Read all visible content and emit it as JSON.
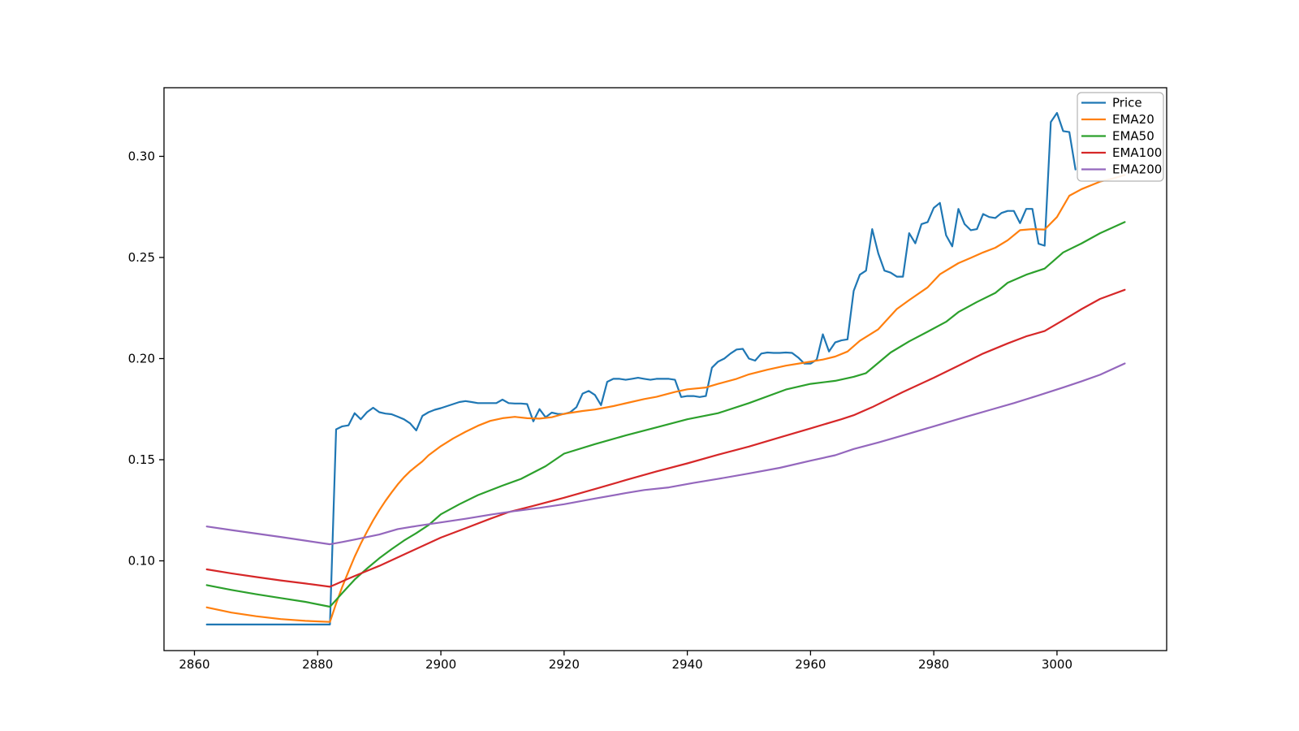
{
  "page": {
    "background": "#ffffff"
  },
  "chart_data": {
    "type": "line",
    "title": "",
    "xlabel": "",
    "ylabel": "",
    "grid": false,
    "legend_position": "upper right",
    "axis_color": "#000000",
    "xlim": [
      2855.06,
      3017.8
    ],
    "ylim": [
      0.05562,
      0.33393
    ],
    "x_ticks": [
      2860,
      2880,
      2900,
      2920,
      2940,
      2960,
      2980,
      3000
    ],
    "y_ticks": [
      {
        "value": 0.1,
        "label": "0.10"
      },
      {
        "value": 0.15,
        "label": "0.15"
      },
      {
        "value": 0.2,
        "label": "0.20"
      },
      {
        "value": 0.25,
        "label": "0.25"
      },
      {
        "value": 0.3,
        "label": "0.30"
      }
    ],
    "legend_entries": [
      {
        "label": "Price",
        "color": "#1f77b4"
      },
      {
        "label": "EMA20",
        "color": "#ff7f0e"
      },
      {
        "label": "EMA50",
        "color": "#2ca02c"
      },
      {
        "label": "EMA100",
        "color": "#d62728"
      },
      {
        "label": "EMA200",
        "color": "#9467bd"
      }
    ],
    "series": [
      {
        "name": "Price",
        "color": "#1f77b4",
        "kind": "per_unit",
        "x_start": 2862,
        "values": [
          0.0685,
          0.0685,
          0.0685,
          0.0685,
          0.0685,
          0.0685,
          0.0685,
          0.0685,
          0.0685,
          0.0685,
          0.0685,
          0.0685,
          0.0685,
          0.0685,
          0.0685,
          0.0685,
          0.0685,
          0.0685,
          0.0685,
          0.0685,
          0.0685,
          0.165,
          0.1665,
          0.167,
          0.173,
          0.17,
          0.1735,
          0.1757,
          0.1735,
          0.1728,
          0.1725,
          0.1713,
          0.17,
          0.168,
          0.1645,
          0.1717,
          0.1735,
          0.1747,
          0.1755,
          0.1765,
          0.1775,
          0.1785,
          0.179,
          0.1785,
          0.178,
          0.178,
          0.178,
          0.178,
          0.1797,
          0.178,
          0.1778,
          0.1778,
          0.1775,
          0.169,
          0.175,
          0.171,
          0.1733,
          0.1726,
          0.1726,
          0.1735,
          0.176,
          0.1827,
          0.184,
          0.182,
          0.177,
          0.1885,
          0.19,
          0.19,
          0.1895,
          0.19,
          0.1905,
          0.19,
          0.1895,
          0.19,
          0.19,
          0.19,
          0.1895,
          0.181,
          0.1815,
          0.1815,
          0.181,
          0.1815,
          0.1955,
          0.1985,
          0.2,
          0.2025,
          0.2045,
          0.2048,
          0.2,
          0.199,
          0.2025,
          0.203,
          0.2028,
          0.2028,
          0.203,
          0.2028,
          0.2005,
          0.1975,
          0.1975,
          0.1995,
          0.212,
          0.2035,
          0.208,
          0.209,
          0.2095,
          0.2335,
          0.2415,
          0.2435,
          0.264,
          0.252,
          0.2435,
          0.2425,
          0.2405,
          0.2405,
          0.262,
          0.257,
          0.2665,
          0.2675,
          0.2745,
          0.277,
          0.261,
          0.2555,
          0.274,
          0.2665,
          0.2635,
          0.264,
          0.2715,
          0.27,
          0.2695,
          0.272,
          0.273,
          0.273,
          0.267,
          0.274,
          0.274,
          0.2568,
          0.2558,
          0.317,
          0.3215,
          0.3125,
          0.312,
          0.2935
        ]
      },
      {
        "name": "EMA20",
        "color": "#ff7f0e",
        "kind": "keypoints",
        "points": [
          [
            2862,
            0.077
          ],
          [
            2866,
            0.0744
          ],
          [
            2870,
            0.0726
          ],
          [
            2874,
            0.0712
          ],
          [
            2878,
            0.0703
          ],
          [
            2882,
            0.0698
          ],
          [
            2883,
            0.0789
          ],
          [
            2884,
            0.0872
          ],
          [
            2885,
            0.0947
          ],
          [
            2886,
            0.102
          ],
          [
            2887,
            0.1085
          ],
          [
            2888,
            0.1144
          ],
          [
            2889,
            0.12
          ],
          [
            2890,
            0.125
          ],
          [
            2891,
            0.1296
          ],
          [
            2892,
            0.1338
          ],
          [
            2893,
            0.1378
          ],
          [
            2894,
            0.1413
          ],
          [
            2895,
            0.1443
          ],
          [
            2896,
            0.1468
          ],
          [
            2897,
            0.1492
          ],
          [
            2898,
            0.1522
          ],
          [
            2900,
            0.1567
          ],
          [
            2902,
            0.1605
          ],
          [
            2904,
            0.1638
          ],
          [
            2906,
            0.1668
          ],
          [
            2908,
            0.1692
          ],
          [
            2910,
            0.1705
          ],
          [
            2912,
            0.1712
          ],
          [
            2914,
            0.1705
          ],
          [
            2916,
            0.1703
          ],
          [
            2918,
            0.171
          ],
          [
            2920,
            0.1727
          ],
          [
            2923,
            0.1741
          ],
          [
            2925,
            0.1748
          ],
          [
            2928,
            0.1765
          ],
          [
            2930,
            0.1779
          ],
          [
            2933,
            0.18
          ],
          [
            2935,
            0.1811
          ],
          [
            2938,
            0.1835
          ],
          [
            2940,
            0.1848
          ],
          [
            2943,
            0.1857
          ],
          [
            2945,
            0.1875
          ],
          [
            2948,
            0.19
          ],
          [
            2950,
            0.1922
          ],
          [
            2953,
            0.1945
          ],
          [
            2956,
            0.1965
          ],
          [
            2959,
            0.198
          ],
          [
            2962,
            0.1995
          ],
          [
            2964,
            0.201
          ],
          [
            2966,
            0.2035
          ],
          [
            2968,
            0.2088
          ],
          [
            2971,
            0.2145
          ],
          [
            2974,
            0.2245
          ],
          [
            2976,
            0.2289
          ],
          [
            2979,
            0.2352
          ],
          [
            2981,
            0.2417
          ],
          [
            2984,
            0.2472
          ],
          [
            2986,
            0.2498
          ],
          [
            2988,
            0.2525
          ],
          [
            2990,
            0.2548
          ],
          [
            2992,
            0.2585
          ],
          [
            2994,
            0.2635
          ],
          [
            2996,
            0.264
          ],
          [
            2998,
            0.2638
          ],
          [
            3000,
            0.27
          ],
          [
            3002,
            0.2805
          ],
          [
            3004,
            0.2838
          ],
          [
            3007,
            0.2875
          ],
          [
            3009,
            0.289
          ],
          [
            3011,
            0.2908
          ]
        ]
      },
      {
        "name": "EMA50",
        "color": "#2ca02c",
        "kind": "keypoints",
        "points": [
          [
            2862,
            0.088
          ],
          [
            2866,
            0.0856
          ],
          [
            2870,
            0.0835
          ],
          [
            2874,
            0.0816
          ],
          [
            2878,
            0.0797
          ],
          [
            2882,
            0.0773
          ],
          [
            2883,
            0.0807
          ],
          [
            2884,
            0.0841
          ],
          [
            2885,
            0.0874
          ],
          [
            2886,
            0.0907
          ],
          [
            2887,
            0.0935
          ],
          [
            2888,
            0.0962
          ],
          [
            2890,
            0.1013
          ],
          [
            2892,
            0.1058
          ],
          [
            2894,
            0.11
          ],
          [
            2896,
            0.1137
          ],
          [
            2898,
            0.1177
          ],
          [
            2900,
            0.123
          ],
          [
            2903,
            0.128
          ],
          [
            2906,
            0.1325
          ],
          [
            2910,
            0.1372
          ],
          [
            2913,
            0.1405
          ],
          [
            2917,
            0.1468
          ],
          [
            2920,
            0.153
          ],
          [
            2925,
            0.1577
          ],
          [
            2930,
            0.162
          ],
          [
            2935,
            0.166
          ],
          [
            2940,
            0.17
          ],
          [
            2945,
            0.173
          ],
          [
            2950,
            0.178
          ],
          [
            2956,
            0.1847
          ],
          [
            2960,
            0.1875
          ],
          [
            2964,
            0.189
          ],
          [
            2967,
            0.191
          ],
          [
            2969,
            0.1928
          ],
          [
            2973,
            0.203
          ],
          [
            2976,
            0.2085
          ],
          [
            2979,
            0.2133
          ],
          [
            2982,
            0.2182
          ],
          [
            2984,
            0.223
          ],
          [
            2987,
            0.228
          ],
          [
            2990,
            0.2325
          ],
          [
            2992,
            0.2375
          ],
          [
            2995,
            0.2415
          ],
          [
            2998,
            0.2445
          ],
          [
            3001,
            0.2525
          ],
          [
            3004,
            0.257
          ],
          [
            3007,
            0.262
          ],
          [
            3011,
            0.2675
          ]
        ]
      },
      {
        "name": "EMA100",
        "color": "#d62728",
        "kind": "keypoints",
        "points": [
          [
            2862,
            0.0958
          ],
          [
            2866,
            0.0938
          ],
          [
            2870,
            0.092
          ],
          [
            2874,
            0.0903
          ],
          [
            2878,
            0.0888
          ],
          [
            2882,
            0.0872
          ],
          [
            2883,
            0.0885
          ],
          [
            2885,
            0.0912
          ],
          [
            2888,
            0.095
          ],
          [
            2890,
            0.0975
          ],
          [
            2895,
            0.1045
          ],
          [
            2900,
            0.1115
          ],
          [
            2904,
            0.1161
          ],
          [
            2908,
            0.1208
          ],
          [
            2911,
            0.1241
          ],
          [
            2915,
            0.1272
          ],
          [
            2920,
            0.1312
          ],
          [
            2925,
            0.1355
          ],
          [
            2930,
            0.1399
          ],
          [
            2935,
            0.1442
          ],
          [
            2940,
            0.1482
          ],
          [
            2945,
            0.1525
          ],
          [
            2950,
            0.1565
          ],
          [
            2955,
            0.161
          ],
          [
            2960,
            0.1655
          ],
          [
            2965,
            0.17
          ],
          [
            2967,
            0.172
          ],
          [
            2970,
            0.176
          ],
          [
            2975,
            0.1835
          ],
          [
            2980,
            0.1905
          ],
          [
            2984,
            0.1965
          ],
          [
            2988,
            0.2025
          ],
          [
            2992,
            0.2075
          ],
          [
            2995,
            0.211
          ],
          [
            2998,
            0.2136
          ],
          [
            3001,
            0.219
          ],
          [
            3004,
            0.2245
          ],
          [
            3007,
            0.2295
          ],
          [
            3011,
            0.234
          ]
        ]
      },
      {
        "name": "EMA200",
        "color": "#9467bd",
        "kind": "keypoints",
        "points": [
          [
            2862,
            0.117
          ],
          [
            2866,
            0.1152
          ],
          [
            2870,
            0.1135
          ],
          [
            2874,
            0.1118
          ],
          [
            2878,
            0.11
          ],
          [
            2882,
            0.1082
          ],
          [
            2884,
            0.1093
          ],
          [
            2886,
            0.1105
          ],
          [
            2890,
            0.113
          ],
          [
            2893,
            0.1157
          ],
          [
            2896,
            0.1172
          ],
          [
            2900,
            0.119
          ],
          [
            2904,
            0.1208
          ],
          [
            2908,
            0.1228
          ],
          [
            2912,
            0.1246
          ],
          [
            2916,
            0.1262
          ],
          [
            2920,
            0.128
          ],
          [
            2925,
            0.1308
          ],
          [
            2930,
            0.1335
          ],
          [
            2933,
            0.135
          ],
          [
            2937,
            0.1363
          ],
          [
            2941,
            0.1385
          ],
          [
            2945,
            0.1405
          ],
          [
            2950,
            0.1432
          ],
          [
            2955,
            0.146
          ],
          [
            2960,
            0.1495
          ],
          [
            2964,
            0.1522
          ],
          [
            2967,
            0.1553
          ],
          [
            2971,
            0.1585
          ],
          [
            2975,
            0.162
          ],
          [
            2980,
            0.1665
          ],
          [
            2985,
            0.171
          ],
          [
            2989,
            0.1745
          ],
          [
            2993,
            0.178
          ],
          [
            2997,
            0.1818
          ],
          [
            3001,
            0.1857
          ],
          [
            3004,
            0.1888
          ],
          [
            3007,
            0.192
          ],
          [
            3011,
            0.1976
          ]
        ]
      }
    ]
  }
}
